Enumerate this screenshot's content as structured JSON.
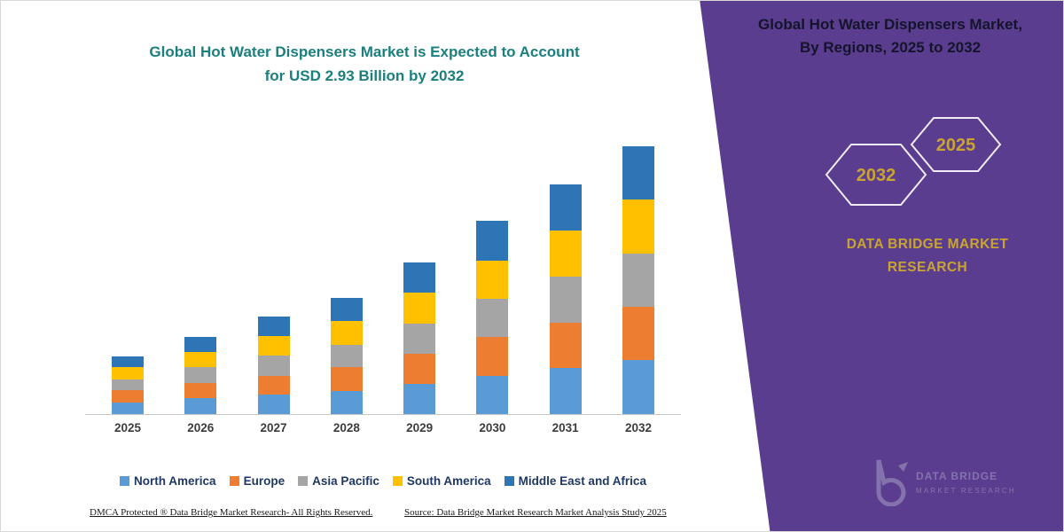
{
  "page": {
    "title_line1": "Global Hot Water Dispensers Market is Expected to Account",
    "title_line2": "for USD 2.93 Billion by 2032"
  },
  "panel": {
    "heading_line1": "Global Hot Water Dispensers Market,",
    "heading_line2": "By Regions, 2025 to 2032",
    "hex_year_left": "2032",
    "hex_year_right": "2025",
    "brand_line1": "DATA BRIDGE MARKET",
    "brand_line2": "RESEARCH",
    "background_color": "#5b3d8f",
    "accent_gold": "#c9a42e"
  },
  "chart_data": {
    "type": "bar",
    "stacked": true,
    "title": "Global Hot Water Dispensers Market is Expected to Account for USD 2.93 Billion by 2032",
    "categories": [
      "2025",
      "2026",
      "2027",
      "2028",
      "2029",
      "2030",
      "2031",
      "2032"
    ],
    "series": [
      {
        "name": "North America",
        "color": "#5b9bd5",
        "values": [
          0.13,
          0.17,
          0.21,
          0.25,
          0.33,
          0.42,
          0.5,
          0.59
        ]
      },
      {
        "name": "Europe",
        "color": "#ed7d31",
        "values": [
          0.13,
          0.17,
          0.21,
          0.26,
          0.33,
          0.42,
          0.5,
          0.58
        ]
      },
      {
        "name": "Asia Pacific",
        "color": "#a5a5a5",
        "values": [
          0.12,
          0.17,
          0.22,
          0.25,
          0.33,
          0.42,
          0.5,
          0.59
        ]
      },
      {
        "name": "South America",
        "color": "#ffc000",
        "values": [
          0.13,
          0.17,
          0.21,
          0.26,
          0.34,
          0.42,
          0.51,
          0.59
        ]
      },
      {
        "name": "Middle East and Africa",
        "color": "#2e75b6",
        "values": [
          0.12,
          0.16,
          0.22,
          0.25,
          0.33,
          0.43,
          0.5,
          0.58
        ]
      }
    ],
    "totals": [
      0.63,
      0.84,
      1.07,
      1.27,
      1.66,
      2.11,
      2.51,
      2.93
    ],
    "xlabel": "",
    "ylabel": "",
    "ylim": [
      0,
      3.2
    ],
    "grid": false,
    "legend_position": "bottom"
  },
  "watermark": {
    "line1": "DATA BRIDGE",
    "line2": "MARKET RESEARCH"
  },
  "footer": {
    "left": "DMCA Protected ® Data Bridge Market Research- All Rights Reserved.",
    "right": "Source: Data Bridge Market Research Market Analysis Study 2025"
  }
}
